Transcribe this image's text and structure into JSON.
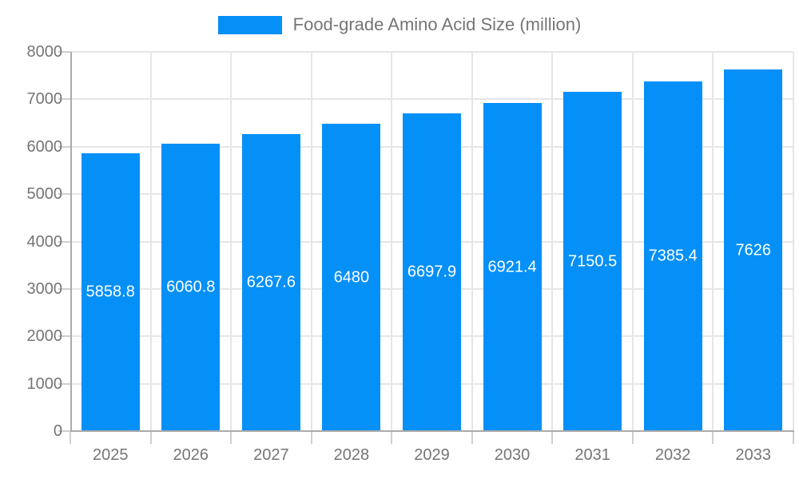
{
  "legend": {
    "label": "Food-grade Amino Acid Size (million)"
  },
  "colors": {
    "bar": "#0590f8",
    "grid": "#e6e6e6",
    "axis": "#ababab",
    "tick": "#cfcfcf",
    "tick_label": "#757575",
    "value_label": "#ffffff",
    "background": "#ffffff"
  },
  "chart_data": {
    "type": "bar",
    "title": "Food-grade Amino Acid Size (million)",
    "categories": [
      "2025",
      "2026",
      "2027",
      "2028",
      "2029",
      "2030",
      "2031",
      "2032",
      "2033"
    ],
    "values": [
      5858.8,
      6060.8,
      6267.6,
      6480,
      6697.9,
      6921.4,
      7150.5,
      7385.4,
      7626
    ],
    "value_labels": [
      "5858.8",
      "6060.8",
      "6267.6",
      "6480",
      "6697.9",
      "6921.4",
      "7150.5",
      "7385.4",
      "7626"
    ],
    "xlabel": "",
    "ylabel": "",
    "ylim": [
      0,
      8000
    ],
    "ytick_step": 1000,
    "ytick_labels": [
      "0",
      "1000",
      "2000",
      "3000",
      "4000",
      "5000",
      "6000",
      "7000",
      "8000"
    ],
    "grid": true,
    "legend_position": "top",
    "value_label_position": "inside-center",
    "bar_color": "#0590f8"
  }
}
